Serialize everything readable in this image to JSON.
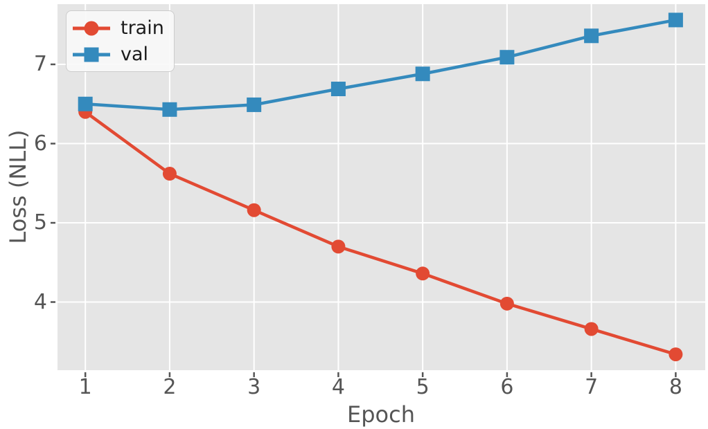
{
  "chart_data": {
    "type": "line",
    "title": "",
    "xlabel": "Epoch",
    "ylabel": "Loss (NLL)",
    "x": [
      1,
      2,
      3,
      4,
      5,
      6,
      7,
      8
    ],
    "series": [
      {
        "name": "train",
        "color": "#E24A33",
        "marker": "circle",
        "values": [
          6.4,
          5.62,
          5.16,
          4.7,
          4.36,
          3.98,
          3.66,
          3.34
        ]
      },
      {
        "name": "val",
        "color": "#348ABD",
        "marker": "square",
        "values": [
          6.5,
          6.43,
          6.49,
          6.69,
          6.88,
          7.09,
          7.36,
          7.56
        ]
      }
    ],
    "xlim": [
      0.67,
      8.35
    ],
    "ylim": [
      3.14,
      7.76
    ],
    "x_ticks": [
      "1",
      "2",
      "3",
      "4",
      "5",
      "6",
      "7",
      "8"
    ],
    "y_ticks": [
      "4",
      "5",
      "6",
      "7"
    ],
    "grid": true,
    "legend_position": "upper left",
    "colors": {
      "figure_background": "#FFFFFF",
      "plot_background": "#E5E5E5",
      "grid": "#FFFFFF",
      "tick_text": "#555555",
      "legend_text": "#1C1C1C"
    }
  },
  "legend": {
    "items": [
      {
        "label": "train"
      },
      {
        "label": "val"
      }
    ]
  }
}
